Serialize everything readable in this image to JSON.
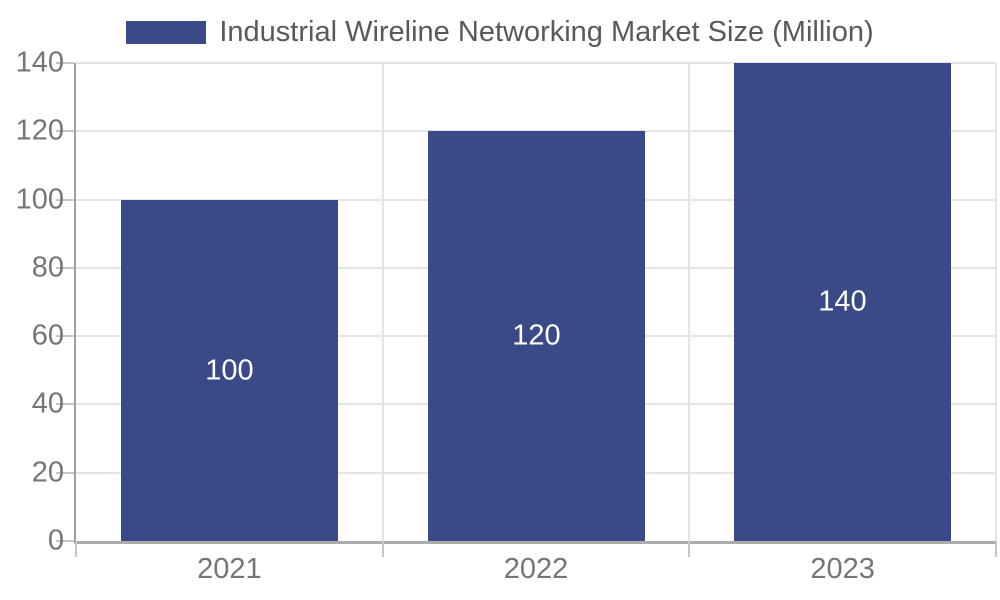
{
  "legend": {
    "label": "Industrial Wireline Networking Market Size (Million)"
  },
  "chart_data": {
    "type": "bar",
    "title": "Industrial Wireline Networking Market Size (Million)",
    "categories": [
      "2021",
      "2022",
      "2023"
    ],
    "values": [
      100,
      120,
      140
    ],
    "value_labels": [
      "100",
      "120",
      "140"
    ],
    "xlabel": "",
    "ylabel": "",
    "ylim": [
      0,
      140
    ],
    "yticks": [
      0,
      20,
      40,
      60,
      80,
      100,
      120,
      140
    ],
    "grid": true,
    "legend_position": "top-center",
    "colors": {
      "bar": "#3a4a89",
      "value_label": "#ffffff",
      "gridline": "#e4e4e4",
      "tick_label": "#757575",
      "legend_text": "#595959",
      "axis_spine": "#a6a6a6"
    }
  }
}
